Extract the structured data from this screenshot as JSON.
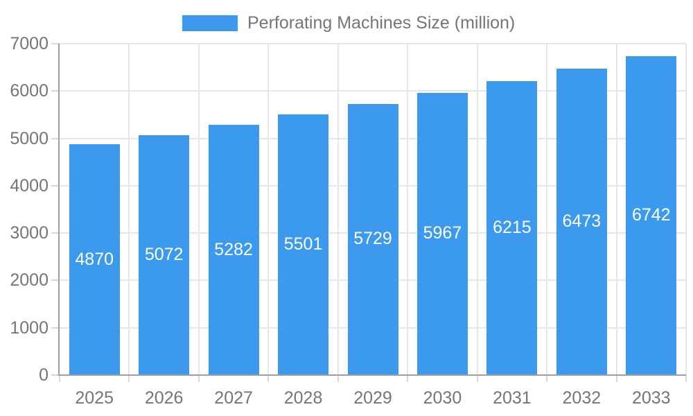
{
  "chart_data": {
    "type": "bar",
    "title": "Perforating Machines Size (million)",
    "legend": {
      "position": "top",
      "label": "Perforating Machines Size (million)"
    },
    "categories": [
      "2025",
      "2026",
      "2027",
      "2028",
      "2029",
      "2030",
      "2031",
      "2032",
      "2033"
    ],
    "series": [
      {
        "name": "Perforating Machines Size (million)",
        "values": [
          4870,
          5072,
          5282,
          5501,
          5729,
          5967,
          6215,
          6473,
          6742
        ]
      }
    ],
    "data_labels_visible": true,
    "xlabel": "",
    "ylabel": "",
    "ylim": [
      0,
      7000
    ],
    "yticks": [
      0,
      1000,
      2000,
      3000,
      4000,
      5000,
      6000,
      7000
    ],
    "grid": true,
    "colors": {
      "bar": "#3B99EE",
      "grid": "#E6E6E6",
      "axis": "#9E9E9E",
      "tick": "#D6D6D6",
      "text": "#757575",
      "data_label": "#FFFFFF",
      "background": "#FFFFFF"
    }
  }
}
